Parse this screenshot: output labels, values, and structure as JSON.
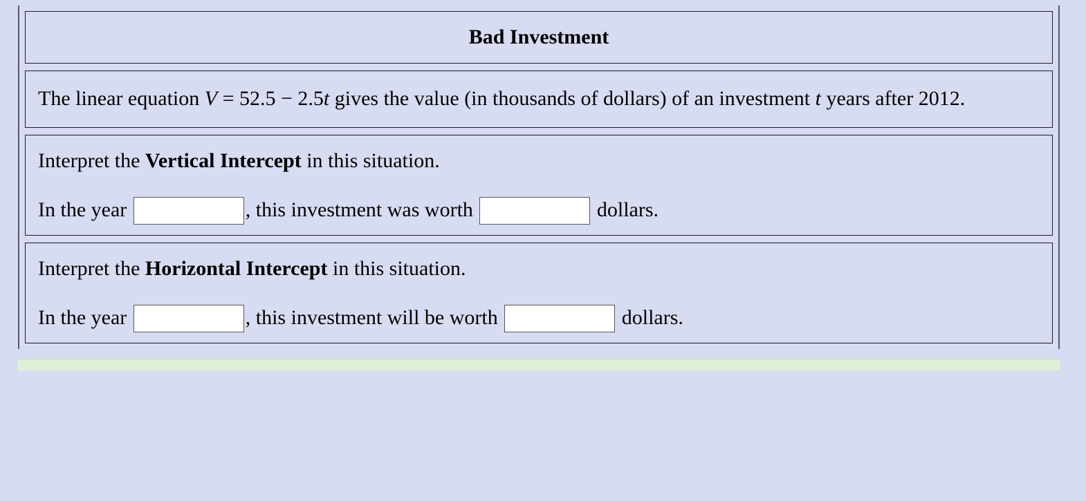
{
  "title": "Bad Investment",
  "equation": {
    "prefix": "The linear equation ",
    "var_V": "V",
    "eq": " = 52.5 − 2.5",
    "var_t": "t",
    "mid": " gives the value (in thousands of dollars) of an investment ",
    "var_t2": "t",
    "suffix": " years after 2012."
  },
  "vertical": {
    "prompt_prefix": "Interpret the ",
    "prompt_bold": "Vertical Intercept",
    "prompt_suffix": " in this situation.",
    "line_a": "In the year ",
    "line_b": ", this investment was worth ",
    "line_c": " dollars.",
    "year_value": "",
    "worth_value": ""
  },
  "horizontal": {
    "prompt_prefix": "Interpret the ",
    "prompt_bold": "Horizontal Intercept",
    "prompt_suffix": " in this situation.",
    "line_a": "In the year ",
    "line_b": ", this investment will be worth ",
    "line_c": " dollars.",
    "year_value": "",
    "worth_value": ""
  }
}
